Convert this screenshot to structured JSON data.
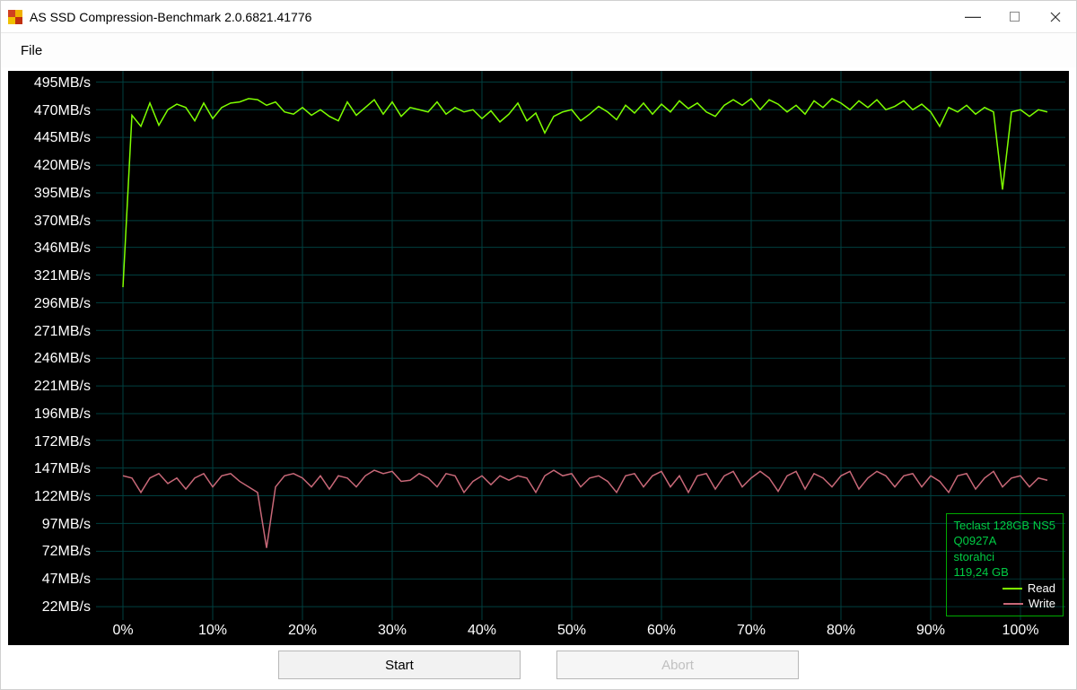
{
  "window": {
    "title": "AS SSD Compression-Benchmark 2.0.6821.41776"
  },
  "menu": {
    "file": "File"
  },
  "buttons": {
    "start": "Start",
    "abort": "Abort"
  },
  "legend": {
    "device": "Teclast 128GB NS5",
    "fw": "Q0927A",
    "driver": "storahci",
    "capacity": "119,24 GB",
    "read_label": "Read",
    "write_label": "Write",
    "read_color": "#7fff00",
    "write_color": "#c86878"
  },
  "chart": {
    "background_color": "#000000",
    "grid_color": "#004040",
    "y_label_color": "#ffffff",
    "x_label_color": "#ffffff",
    "y_ticks": [
      "495MB/s",
      "470MB/s",
      "445MB/s",
      "420MB/s",
      "395MB/s",
      "370MB/s",
      "346MB/s",
      "321MB/s",
      "296MB/s",
      "271MB/s",
      "246MB/s",
      "221MB/s",
      "196MB/s",
      "172MB/s",
      "147MB/s",
      "122MB/s",
      "97MB/s",
      "72MB/s",
      "47MB/s",
      "22MB/s"
    ],
    "y_values": [
      495,
      470,
      445,
      420,
      395,
      370,
      346,
      321,
      296,
      271,
      246,
      221,
      196,
      172,
      147,
      122,
      97,
      72,
      47,
      22
    ],
    "x_ticks": [
      "0%",
      "10%",
      "20%",
      "30%",
      "40%",
      "50%",
      "60%",
      "70%",
      "80%",
      "90%",
      "100%"
    ],
    "x_values": [
      0,
      10,
      20,
      30,
      40,
      50,
      60,
      70,
      80,
      90,
      100
    ],
    "x_range": [
      -3,
      105
    ],
    "y_range": [
      10,
      505
    ],
    "read": {
      "color": "#7fff00",
      "width": 1.5,
      "points": [
        [
          0,
          310
        ],
        [
          1,
          465
        ],
        [
          2,
          455
        ],
        [
          3,
          476
        ],
        [
          4,
          456
        ],
        [
          5,
          470
        ],
        [
          6,
          475
        ],
        [
          7,
          472
        ],
        [
          8,
          460
        ],
        [
          9,
          476
        ],
        [
          10,
          462
        ],
        [
          11,
          472
        ],
        [
          12,
          476
        ],
        [
          13,
          477
        ],
        [
          14,
          480
        ],
        [
          15,
          479
        ],
        [
          16,
          474
        ],
        [
          17,
          477
        ],
        [
          18,
          468
        ],
        [
          19,
          466
        ],
        [
          20,
          472
        ],
        [
          21,
          465
        ],
        [
          22,
          470
        ],
        [
          23,
          464
        ],
        [
          24,
          460
        ],
        [
          25,
          477
        ],
        [
          26,
          465
        ],
        [
          27,
          472
        ],
        [
          28,
          479
        ],
        [
          29,
          466
        ],
        [
          30,
          477
        ],
        [
          31,
          464
        ],
        [
          32,
          472
        ],
        [
          33,
          470
        ],
        [
          34,
          468
        ],
        [
          35,
          477
        ],
        [
          36,
          466
        ],
        [
          37,
          472
        ],
        [
          38,
          468
        ],
        [
          39,
          470
        ],
        [
          40,
          462
        ],
        [
          41,
          469
        ],
        [
          42,
          459
        ],
        [
          43,
          466
        ],
        [
          44,
          476
        ],
        [
          45,
          460
        ],
        [
          46,
          467
        ],
        [
          47,
          449
        ],
        [
          48,
          464
        ],
        [
          49,
          468
        ],
        [
          50,
          470
        ],
        [
          51,
          460
        ],
        [
          52,
          466
        ],
        [
          53,
          473
        ],
        [
          54,
          468
        ],
        [
          55,
          461
        ],
        [
          56,
          474
        ],
        [
          57,
          467
        ],
        [
          58,
          476
        ],
        [
          59,
          466
        ],
        [
          60,
          475
        ],
        [
          61,
          468
        ],
        [
          62,
          478
        ],
        [
          63,
          471
        ],
        [
          64,
          476
        ],
        [
          65,
          468
        ],
        [
          66,
          464
        ],
        [
          67,
          474
        ],
        [
          68,
          479
        ],
        [
          69,
          474
        ],
        [
          70,
          480
        ],
        [
          71,
          470
        ],
        [
          72,
          479
        ],
        [
          73,
          475
        ],
        [
          74,
          468
        ],
        [
          75,
          474
        ],
        [
          76,
          466
        ],
        [
          77,
          478
        ],
        [
          78,
          472
        ],
        [
          79,
          480
        ],
        [
          80,
          476
        ],
        [
          81,
          470
        ],
        [
          82,
          478
        ],
        [
          83,
          472
        ],
        [
          84,
          479
        ],
        [
          85,
          470
        ],
        [
          86,
          473
        ],
        [
          87,
          478
        ],
        [
          88,
          470
        ],
        [
          89,
          475
        ],
        [
          90,
          468
        ],
        [
          91,
          455
        ],
        [
          92,
          472
        ],
        [
          93,
          468
        ],
        [
          94,
          474
        ],
        [
          95,
          466
        ],
        [
          96,
          472
        ],
        [
          97,
          468
        ],
        [
          98,
          398
        ],
        [
          99,
          468
        ],
        [
          100,
          470
        ],
        [
          101,
          464
        ],
        [
          102,
          470
        ],
        [
          103,
          468
        ]
      ]
    },
    "write": {
      "color": "#c86878",
      "width": 1.5,
      "points": [
        [
          0,
          140
        ],
        [
          1,
          138
        ],
        [
          2,
          125
        ],
        [
          3,
          138
        ],
        [
          4,
          142
        ],
        [
          5,
          133
        ],
        [
          6,
          138
        ],
        [
          7,
          128
        ],
        [
          8,
          138
        ],
        [
          9,
          142
        ],
        [
          10,
          130
        ],
        [
          11,
          140
        ],
        [
          12,
          142
        ],
        [
          13,
          135
        ],
        [
          14,
          130
        ],
        [
          15,
          125
        ],
        [
          16,
          75
        ],
        [
          17,
          130
        ],
        [
          18,
          140
        ],
        [
          19,
          142
        ],
        [
          20,
          138
        ],
        [
          21,
          130
        ],
        [
          22,
          140
        ],
        [
          23,
          128
        ],
        [
          24,
          140
        ],
        [
          25,
          138
        ],
        [
          26,
          130
        ],
        [
          27,
          140
        ],
        [
          28,
          145
        ],
        [
          29,
          142
        ],
        [
          30,
          144
        ],
        [
          31,
          135
        ],
        [
          32,
          136
        ],
        [
          33,
          142
        ],
        [
          34,
          138
        ],
        [
          35,
          130
        ],
        [
          36,
          142
        ],
        [
          37,
          140
        ],
        [
          38,
          125
        ],
        [
          39,
          135
        ],
        [
          40,
          140
        ],
        [
          41,
          132
        ],
        [
          42,
          140
        ],
        [
          43,
          136
        ],
        [
          44,
          140
        ],
        [
          45,
          138
        ],
        [
          46,
          125
        ],
        [
          47,
          140
        ],
        [
          48,
          145
        ],
        [
          49,
          140
        ],
        [
          50,
          142
        ],
        [
          51,
          130
        ],
        [
          52,
          138
        ],
        [
          53,
          140
        ],
        [
          54,
          135
        ],
        [
          55,
          125
        ],
        [
          56,
          140
        ],
        [
          57,
          142
        ],
        [
          58,
          130
        ],
        [
          59,
          140
        ],
        [
          60,
          144
        ],
        [
          61,
          130
        ],
        [
          62,
          140
        ],
        [
          63,
          125
        ],
        [
          64,
          140
        ],
        [
          65,
          142
        ],
        [
          66,
          128
        ],
        [
          67,
          140
        ],
        [
          68,
          144
        ],
        [
          69,
          130
        ],
        [
          70,
          138
        ],
        [
          71,
          144
        ],
        [
          72,
          138
        ],
        [
          73,
          126
        ],
        [
          74,
          140
        ],
        [
          75,
          144
        ],
        [
          76,
          128
        ],
        [
          77,
          142
        ],
        [
          78,
          138
        ],
        [
          79,
          130
        ],
        [
          80,
          140
        ],
        [
          81,
          144
        ],
        [
          82,
          128
        ],
        [
          83,
          138
        ],
        [
          84,
          144
        ],
        [
          85,
          140
        ],
        [
          86,
          130
        ],
        [
          87,
          140
        ],
        [
          88,
          142
        ],
        [
          89,
          130
        ],
        [
          90,
          140
        ],
        [
          91,
          135
        ],
        [
          92,
          125
        ],
        [
          93,
          140
        ],
        [
          94,
          142
        ],
        [
          95,
          128
        ],
        [
          96,
          138
        ],
        [
          97,
          144
        ],
        [
          98,
          130
        ],
        [
          99,
          138
        ],
        [
          100,
          140
        ],
        [
          101,
          130
        ],
        [
          102,
          138
        ],
        [
          103,
          136
        ]
      ]
    }
  }
}
